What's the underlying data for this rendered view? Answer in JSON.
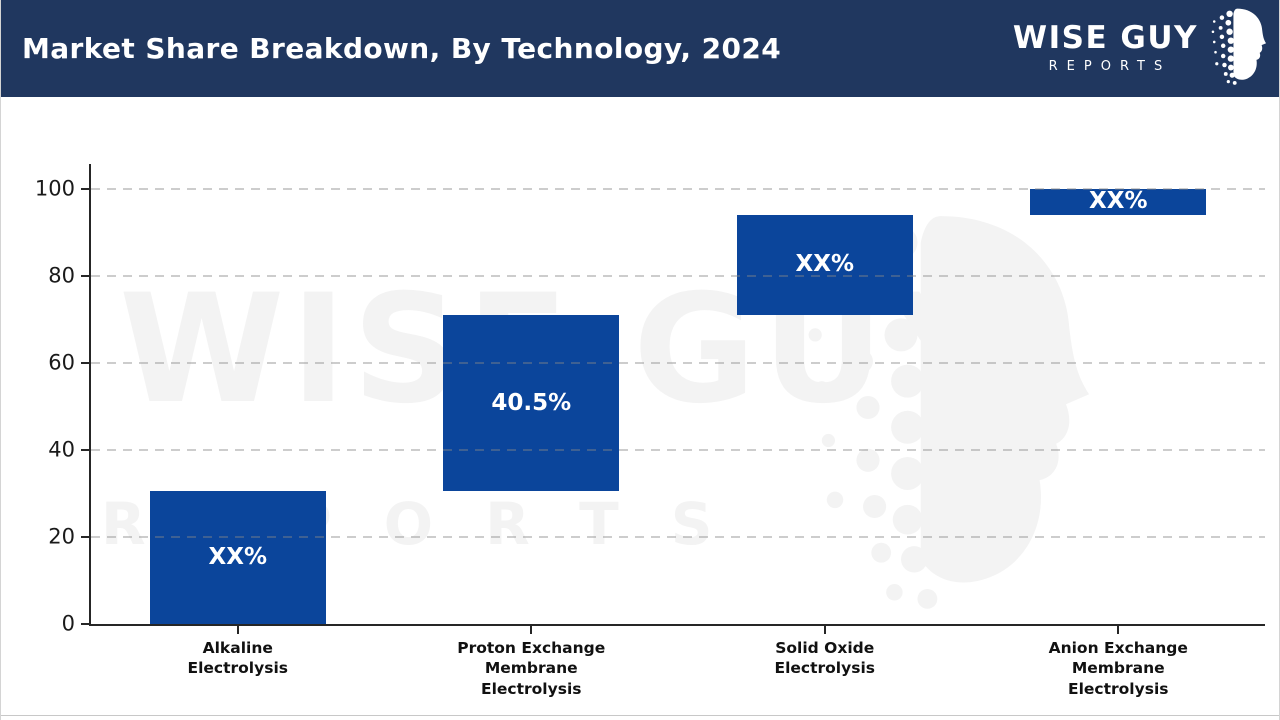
{
  "header": {
    "title": "Market Share Breakdown, By Technology, 2024",
    "logo": {
      "wordmark": "WISE GUY",
      "sub": "REPORTS"
    }
  },
  "watermark": {
    "wordmark": "WISE GUY",
    "sub": "REPORTS"
  },
  "colors": {
    "header_bg": "#20375F",
    "bar": "#0B459B",
    "bar_label": "#FFFFFF",
    "axis": "#262626",
    "gridline": "#D9D9D9",
    "watermark": "#F3F3F3",
    "tick_label": "#1A1A1A",
    "page_bg": "#FFFFFF"
  },
  "chart_data": {
    "type": "bar",
    "subtype": "floating-waterfall",
    "title": "Market Share Breakdown, By Technology, 2024",
    "categories": [
      "Alkaline\nElectrolysis",
      "Proton Exchange\nMembrane\nElectrolysis",
      "Solid Oxide\nElectrolysis",
      "Anion Exchange\nMembrane\nElectrolysis"
    ],
    "segments": [
      {
        "label": "XX%",
        "start": 0,
        "end": 30.5
      },
      {
        "label": "40.5%",
        "start": 30.5,
        "end": 71,
        "value": 40.5
      },
      {
        "label": "XX%",
        "start": 71,
        "end": 94
      },
      {
        "label": "XX%",
        "start": 94,
        "end": 100
      }
    ],
    "yticks": [
      0,
      20,
      40,
      60,
      80,
      100
    ],
    "ylim": [
      0,
      105.7
    ],
    "xlabel": "",
    "ylabel": "",
    "grid": "horizontal-dashed",
    "legend": "none"
  }
}
